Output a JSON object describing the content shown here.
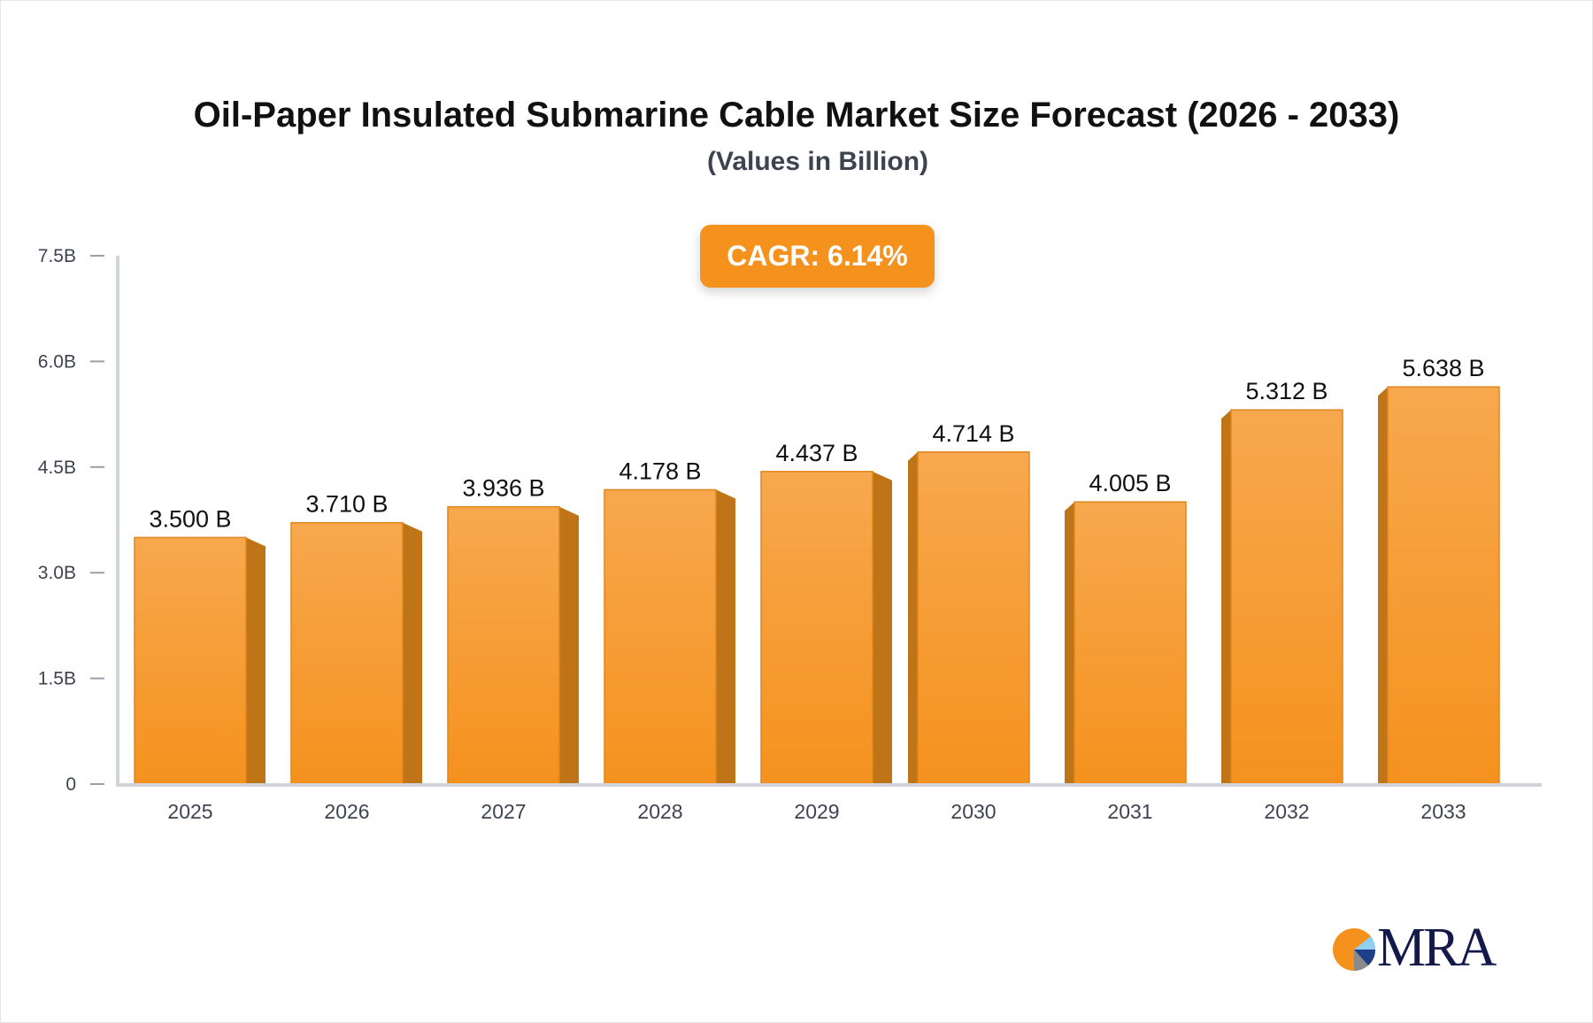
{
  "chart_data": {
    "type": "bar",
    "title": "Oil-Paper Insulated Submarine Cable Market Size Forecast (2026 - 2033)",
    "subtitle": "(Values in Billion)",
    "annotation": "CAGR: 6.14%",
    "categories": [
      "2025",
      "2026",
      "2027",
      "2028",
      "2029",
      "2030",
      "2031",
      "2032",
      "2033"
    ],
    "values": [
      3.5,
      3.71,
      3.936,
      4.178,
      4.437,
      4.714,
      4.005,
      5.312,
      5.638
    ],
    "data_labels": [
      "3.500 B",
      "3.710 B",
      "3.936 B",
      "4.178 B",
      "4.437 B",
      "4.714 B",
      "4.005 B",
      "5.312 B",
      "5.638 B"
    ],
    "ylim": [
      0,
      7.5
    ],
    "yticks": [
      0,
      1.5,
      3.0,
      4.5,
      6.0,
      7.5
    ],
    "ytick_labels": [
      "0",
      "1.5B",
      "3.0B",
      "4.5B",
      "6.0B",
      "7.5B"
    ],
    "xlabel": "",
    "ylabel": "",
    "grid": false,
    "colors": {
      "bar_top": "#f7a84e",
      "bar_bottom": "#f5921e",
      "bar_side": "#c07418",
      "accent": "#f5921e"
    }
  },
  "logo": {
    "text": "MRA"
  }
}
